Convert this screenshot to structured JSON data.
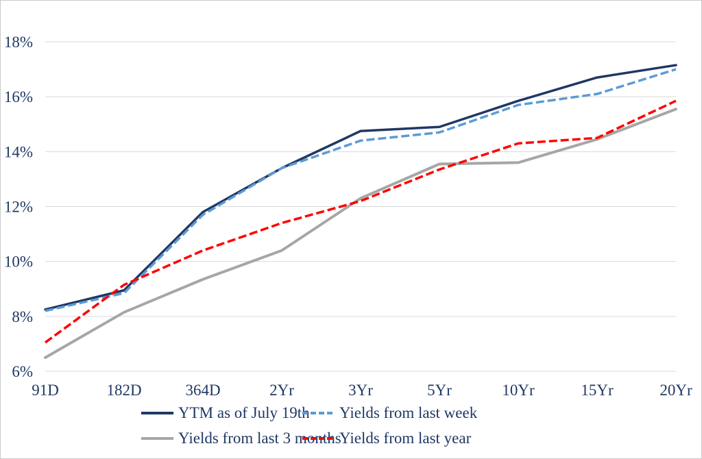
{
  "chart_data": {
    "type": "line",
    "title": "",
    "xlabel": "",
    "ylabel": "",
    "categories": [
      "91D",
      "182D",
      "364D",
      "2Yr",
      "3Yr",
      "5Yr",
      "10Yr",
      "15Yr",
      "20Yr"
    ],
    "series": [
      {
        "name": "YTM as of July 19th",
        "color": "#1F3864",
        "dash": "solid",
        "values": [
          8.25,
          8.95,
          11.8,
          13.4,
          14.75,
          14.9,
          15.85,
          16.7,
          17.15
        ]
      },
      {
        "name": "Yields from last week",
        "color": "#5B9BD5",
        "dash": "dashed",
        "values": [
          8.2,
          8.85,
          11.7,
          13.4,
          14.4,
          14.7,
          15.7,
          16.1,
          17.0
        ]
      },
      {
        "name": "Yields from last 3 months",
        "color": "#A6A6A6",
        "dash": "solid",
        "values": [
          6.5,
          8.15,
          9.35,
          10.4,
          12.3,
          13.55,
          13.6,
          14.45,
          15.55
        ]
      },
      {
        "name": "Yields from last year",
        "color": "#FF0000",
        "dash": "dashed",
        "values": [
          7.05,
          9.15,
          10.4,
          11.4,
          12.2,
          13.35,
          14.3,
          14.5,
          15.85
        ]
      }
    ],
    "y_axis": {
      "min": 6,
      "max": 18,
      "step": 2,
      "tick_labels": [
        "6%",
        "8%",
        "10%",
        "12%",
        "14%",
        "16%",
        "18%"
      ]
    },
    "x_axis": {
      "tick_labels": [
        "91D",
        "182D",
        "364D",
        "2Yr",
        "3Yr",
        "5Yr",
        "10Yr",
        "15Yr",
        "20Yr"
      ]
    },
    "grid": true,
    "legend_position": "bottom",
    "colors": {
      "axis_text": "#1F3864",
      "gridline": "#D9D9D9",
      "background": "#FFFFFF",
      "border": "#C9C9C9"
    }
  }
}
